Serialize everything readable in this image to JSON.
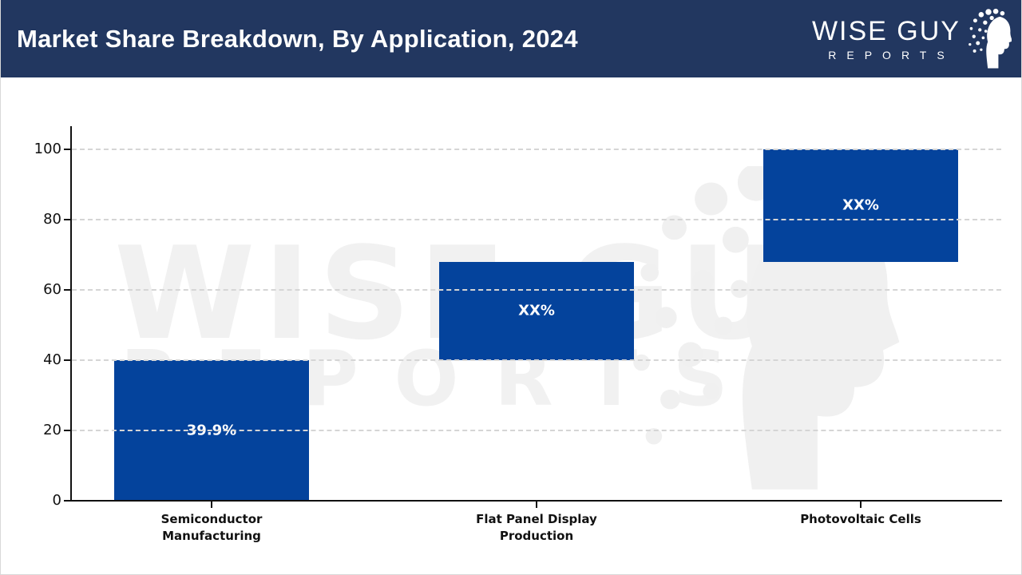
{
  "header": {
    "title": "Market Share Breakdown, By Application, 2024",
    "logo": {
      "line1": "WISE GUY",
      "line2": "REPORTS",
      "face_icon": "dotted-head-profile"
    }
  },
  "watermark": {
    "line1": "WISE GUY",
    "line2": "REPORTS"
  },
  "colors": {
    "header_bg": "#223760",
    "title_text": "#ffffff",
    "bar": "#04439C",
    "bar_label": "#ffffff",
    "axis": "#111111",
    "grid": "#d5d5d5",
    "tick_label": "#111111",
    "category_label": "#111111",
    "watermark": "#f1f1f1",
    "page_border": "#d9d9d9"
  },
  "chart_data": {
    "type": "bar",
    "subtype": "floating-waterfall",
    "title": "Market Share Breakdown, By Application, 2024",
    "categories": [
      "Semiconductor Manufacturing",
      "Flat Panel Display Production",
      "Photovoltaic Cells"
    ],
    "categories_wrapped": [
      "Semiconductor\nManufacturing",
      "Flat Panel Display\nProduction",
      "Photovoltaic Cells"
    ],
    "bars": [
      {
        "category": "Semiconductor Manufacturing",
        "from": 0,
        "to": 40,
        "label": "39.9%"
      },
      {
        "category": "Flat Panel Display Production",
        "from": 40,
        "to": 68,
        "label": "XX%"
      },
      {
        "category": "Photovoltaic Cells",
        "from": 68,
        "to": 100,
        "label": "XX%"
      }
    ],
    "unit": "%",
    "xlabel": "",
    "ylabel": "",
    "ylim": [
      0,
      106
    ],
    "yticks": [
      0,
      20,
      40,
      60,
      80,
      100
    ],
    "grid": {
      "horizontal": true,
      "style": "dashed",
      "drawn_above_bars": true
    },
    "legend": null
  }
}
